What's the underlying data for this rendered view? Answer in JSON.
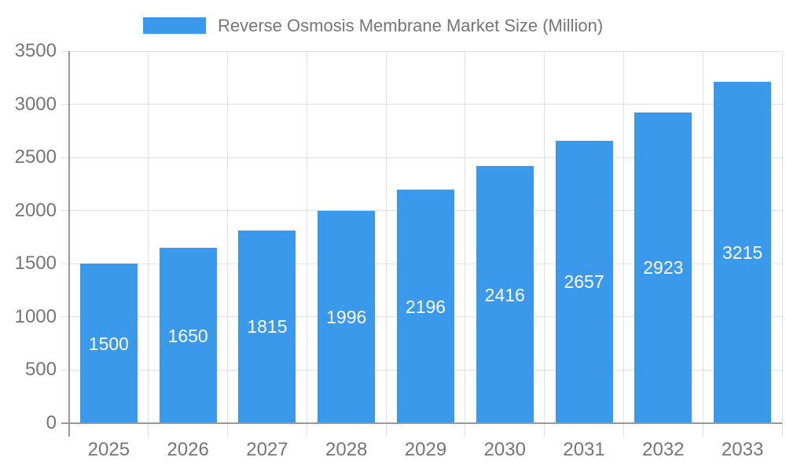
{
  "chart_data": {
    "type": "bar",
    "title": "Reverse Osmosis Membrane Market Size (Million)",
    "legend": {
      "label": "Reverse Osmosis Membrane Market Size (Million)",
      "position": "top"
    },
    "categories": [
      "2025",
      "2026",
      "2027",
      "2028",
      "2029",
      "2030",
      "2031",
      "2032",
      "2033"
    ],
    "series": [
      {
        "name": "Reverse Osmosis Membrane Market Size (Million)",
        "values": [
          1500,
          1650,
          1815,
          1996,
          2196,
          2416,
          2657,
          2923,
          3215
        ]
      }
    ],
    "value_labels": "inside-center",
    "xlabel": "",
    "ylabel": "",
    "ylim": [
      0,
      3500
    ],
    "yticks": [
      0,
      500,
      1000,
      1500,
      2000,
      2500,
      3000,
      3500
    ],
    "grid": true,
    "colors": {
      "bar": "#3b99ec",
      "value_label": "#ffffff",
      "axis_text": "#757575",
      "legend_text": "#757575",
      "grid_line": "#e0e0e0",
      "axis_line": "#999999",
      "background": "#ffffff"
    }
  }
}
